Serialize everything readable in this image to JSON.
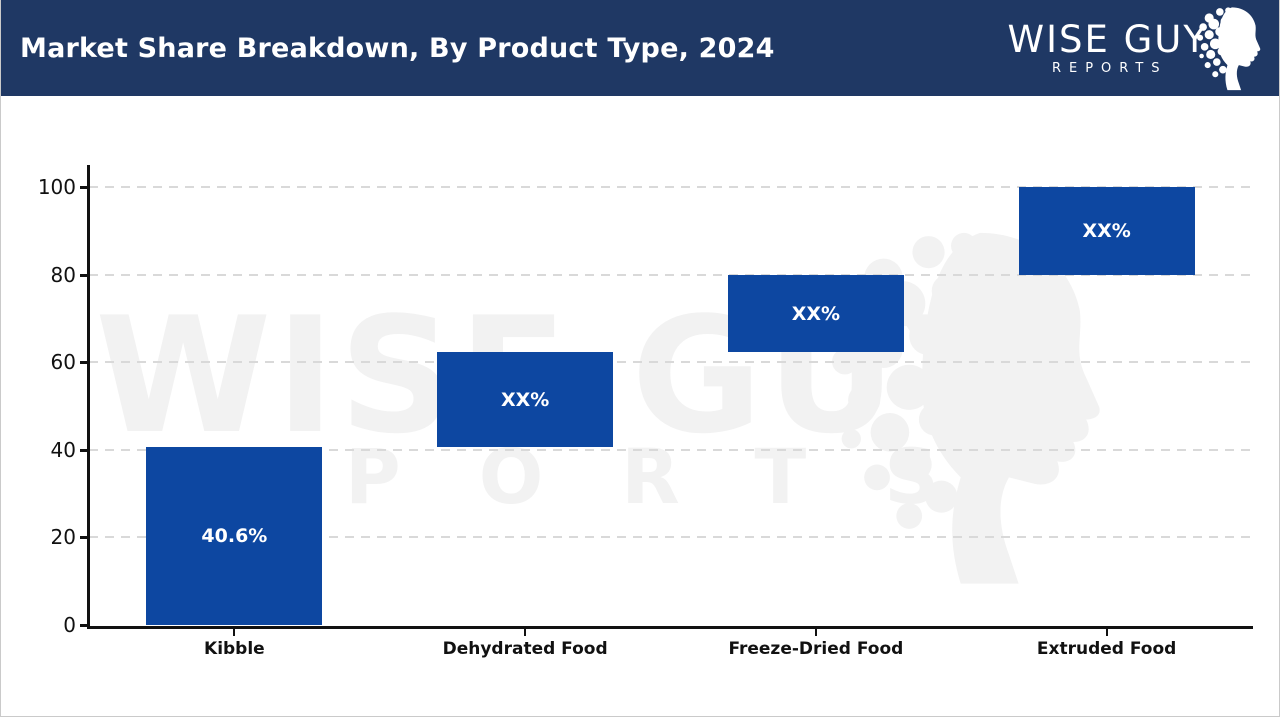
{
  "header": {
    "title": "Market Share Breakdown, By Product Type, 2024",
    "bg_color": "#1f3864",
    "logo": {
      "line1": "WISE GUY",
      "line2": "REPORTS"
    }
  },
  "watermark": {
    "line1": "WISE GUY",
    "line2": "PORTS"
  },
  "chart_data": {
    "type": "bar",
    "subtype": "waterfall",
    "title": "Market Share Breakdown, By Product Type, 2024",
    "categories": [
      "Kibble",
      "Dehydrated Food",
      "Freeze-Dried Food",
      "Extruded Food"
    ],
    "segments": [
      {
        "category": "Kibble",
        "label": "40.6%",
        "start": 0,
        "end": 40.6
      },
      {
        "category": "Dehydrated Food",
        "label": "XX%",
        "start": 40.6,
        "end": 62.3
      },
      {
        "category": "Freeze-Dried Food",
        "label": "XX%",
        "start": 62.3,
        "end": 79.9
      },
      {
        "category": "Extruded Food",
        "label": "XX%",
        "start": 79.9,
        "end": 100
      }
    ],
    "xlabel": "",
    "ylabel": "",
    "ylim": [
      0,
      100
    ],
    "yticks": [
      0,
      20,
      40,
      60,
      80,
      100
    ],
    "grid": "horizontal-dashed",
    "legend": "none",
    "bar_color": "#0d47a1",
    "bar_label_color": "#ffffff",
    "axis_color": "#111111",
    "grid_color": "#d9d9d9"
  }
}
